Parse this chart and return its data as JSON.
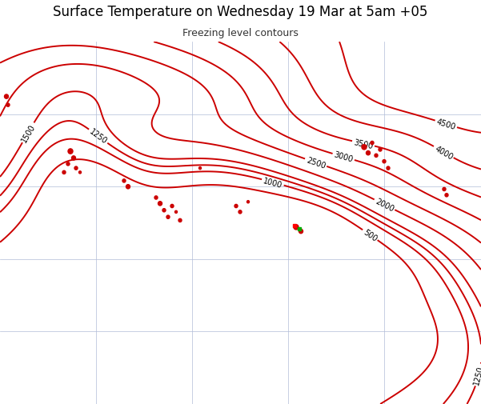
{
  "title": "Surface Temperature on Wednesday 19 Mar at 5am +05",
  "subtitle": "Freezing level contours",
  "title_fontsize": 12,
  "subtitle_fontsize": 9,
  "map_bg_color": "#d8def0",
  "header_bg_color": "#ffffff",
  "contour_color": "#cc0000",
  "contour_linewidth": 1.4,
  "label_fontsize": 7,
  "grid_color": "#b0bcd8",
  "grid_linewidth": 0.5,
  "contour_levels": [
    500,
    1000,
    1250,
    1500,
    2000,
    2500,
    3000,
    3500,
    4000,
    4500
  ],
  "figsize": [
    6.01,
    5.06
  ],
  "dpi": 100
}
